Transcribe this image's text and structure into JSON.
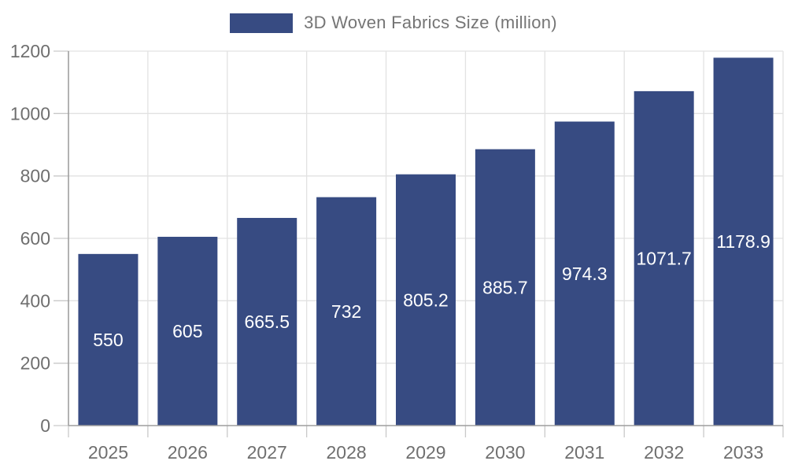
{
  "chart_data": {
    "type": "bar",
    "title": "3D Woven Fabrics Size (million)",
    "categories": [
      "2025",
      "2026",
      "2027",
      "2028",
      "2029",
      "2030",
      "2031",
      "2032",
      "2033"
    ],
    "values": [
      550,
      605,
      665.5,
      732,
      805.2,
      885.7,
      974.3,
      1071.7,
      1178.9
    ],
    "value_labels": [
      "550",
      "605",
      "665.5",
      "732",
      "805.2",
      "885.7",
      "974.3",
      "1071.7",
      "1178.9"
    ],
    "xlabel": "",
    "ylabel": "",
    "ylim": [
      0,
      1200
    ],
    "yticks": [
      0,
      200,
      400,
      600,
      800,
      1000,
      1200
    ],
    "grid": true,
    "legend_position": "top-center",
    "colors": {
      "bar": "#374B82",
      "bar_label": "#FFFFFF",
      "axis": "#9E9E9E",
      "grid": "#E2E2E2",
      "tick": "#C9C9C9",
      "tick_label": "#6F6F6F",
      "legend_text": "#757575"
    }
  }
}
